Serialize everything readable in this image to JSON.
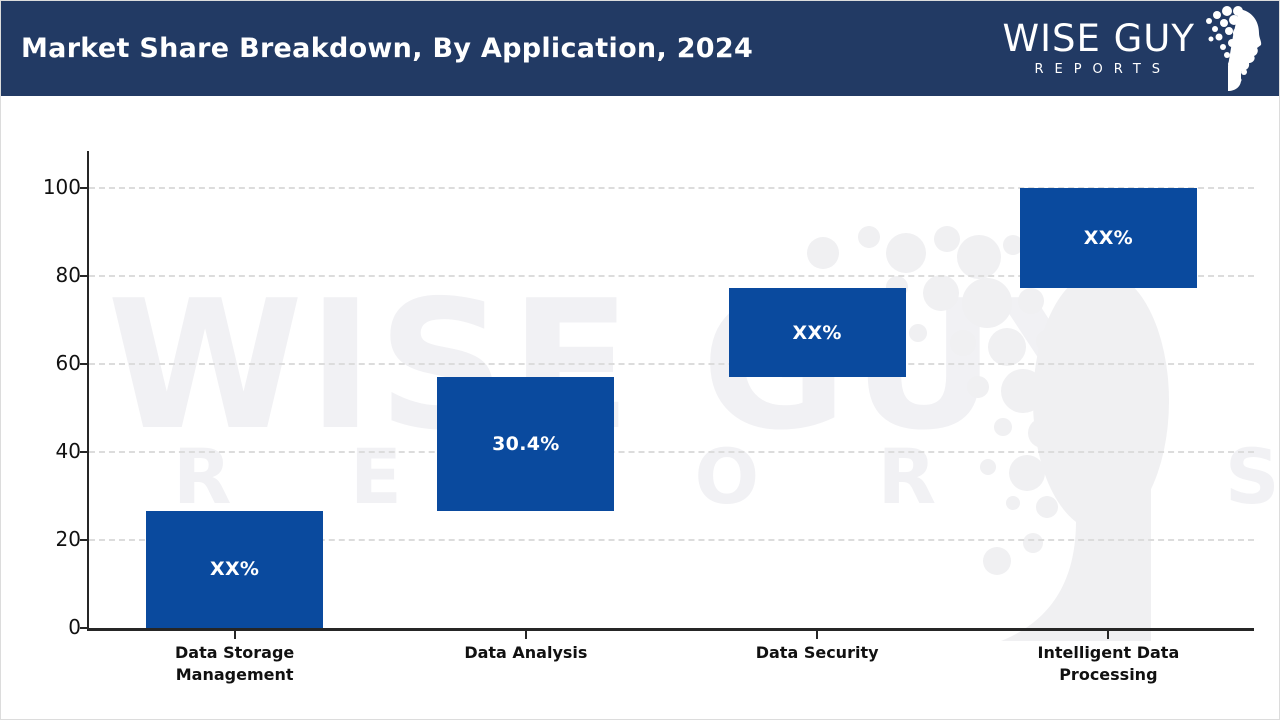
{
  "header": {
    "title": "Market Share Breakdown, By Application, 2024",
    "bg_color": "#223A64",
    "brand": {
      "name": "WISE GUY",
      "subtitle": "REPORTS"
    }
  },
  "watermark": {
    "line1": "WISE GUY",
    "line2": "R E P O R T S",
    "color": "#f1f1f4"
  },
  "chart_data": {
    "type": "bar",
    "subtype": "floating-segment-waterfall",
    "title": "Market Share Breakdown, By Application, 2024",
    "categories": [
      "Data Storage\nManagement",
      "Data Analysis",
      "Data Security",
      "Intelligent Data\nProcessing"
    ],
    "segments": [
      {
        "category": "Data Storage Management",
        "start": 0,
        "end": 26.6,
        "value": 26.6,
        "label": "XX%"
      },
      {
        "category": "Data Analysis",
        "start": 26.6,
        "end": 57.0,
        "value": 30.4,
        "label": "30.4%"
      },
      {
        "category": "Data Security",
        "start": 57.0,
        "end": 77.3,
        "value": 20.3,
        "label": "XX%"
      },
      {
        "category": "Intelligent Data Processing",
        "start": 77.3,
        "end": 100,
        "value": 22.7,
        "label": "XX%"
      }
    ],
    "xlabel": "",
    "ylabel": "",
    "ylim": [
      0,
      105
    ],
    "yticks": [
      0,
      20,
      40,
      60,
      80,
      100
    ],
    "grid": "horizontal dashed",
    "legend": "none",
    "bar_color": "#0a4a9e",
    "bar_label_color": "#ffffff",
    "axis_color": "#262626",
    "grid_color": "#dcdcdc"
  }
}
